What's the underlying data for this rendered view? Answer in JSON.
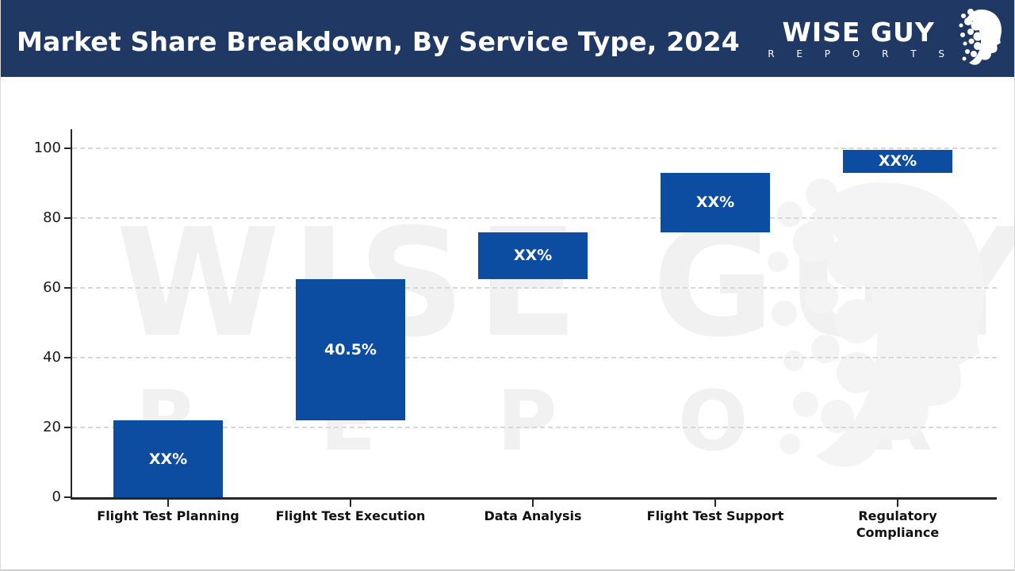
{
  "header": {
    "title": "Market Share Breakdown, By Service Type, 2024",
    "background": "#203864",
    "brand": {
      "name": "WISE GUY",
      "sub": "R E P O R T S"
    }
  },
  "watermark": {
    "line1": "WISE GUY",
    "line2": "R E P O R T S"
  },
  "chart_data": {
    "type": "bar",
    "variant": "waterfall-floating",
    "title": "Market Share Breakdown, By Service Type, 2024",
    "categories": [
      "Flight Test Planning",
      "Flight Test Execution",
      "Data Analysis",
      "Flight Test Support",
      "Regulatory Compliance"
    ],
    "bars": [
      {
        "category": "Flight Test Planning",
        "start": 0,
        "end": 22,
        "label": "XX%"
      },
      {
        "category": "Flight Test Execution",
        "start": 22,
        "end": 62.5,
        "label": "40.5%"
      },
      {
        "category": "Data Analysis",
        "start": 62.5,
        "end": 76,
        "label": "XX%"
      },
      {
        "category": "Flight Test Support",
        "start": 76,
        "end": 93,
        "label": "XX%"
      },
      {
        "category": "Regulatory Compliance",
        "start": 93,
        "end": 99.5,
        "label": "XX%"
      }
    ],
    "yticks": [
      0,
      20,
      40,
      60,
      80,
      100
    ],
    "ylim": [
      0,
      105
    ],
    "xlabel": "",
    "ylabel": "",
    "grid": "dashed-horizontal",
    "legend": "none",
    "bar_color": "#0d4da1",
    "axis_color": "#262626",
    "grid_color": "#d8d8d8"
  }
}
